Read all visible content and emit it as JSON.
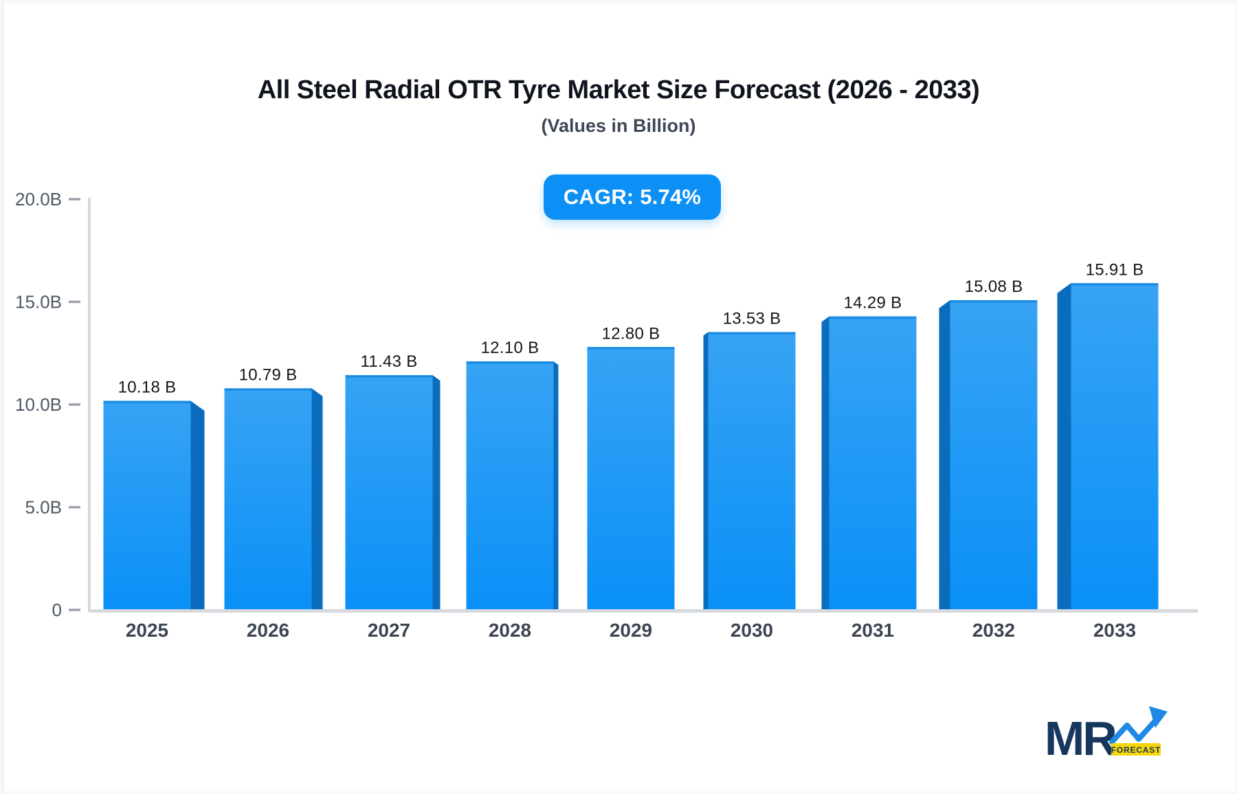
{
  "frame": {
    "background": "#f7f8fa"
  },
  "badge": {
    "label": "CAGR: 5.74%",
    "bg": "#0d90f5",
    "text_color": "#ffffff"
  },
  "chart_data": {
    "type": "bar",
    "title": "All Steel Radial OTR Tyre Market Size Forecast (2026 - 2033)",
    "subtitle": "(Values in Billion)",
    "unit": "Billion",
    "categories": [
      "2025",
      "2026",
      "2027",
      "2028",
      "2029",
      "2030",
      "2031",
      "2032",
      "2033"
    ],
    "values": [
      10.18,
      10.79,
      11.43,
      12.1,
      12.8,
      13.53,
      14.29,
      15.08,
      15.91
    ],
    "value_labels": [
      "10.18 B",
      "10.79 B",
      "11.43 B",
      "12.10 B",
      "12.80 B",
      "13.53 B",
      "14.29 B",
      "15.08 B",
      "15.91 B"
    ],
    "ylim": [
      0,
      20
    ],
    "yticks": [
      {
        "value": 0,
        "label": "0"
      },
      {
        "value": 5,
        "label": "5.0B"
      },
      {
        "value": 10,
        "label": "10.0B"
      },
      {
        "value": 15,
        "label": "15.0B"
      },
      {
        "value": 20,
        "label": "20.0B"
      }
    ],
    "grid": false,
    "legend": null,
    "style": {
      "front_top": "#37a3f4",
      "front_bottom": "#0a90f7",
      "side": "#0a6cbd",
      "bevel": "#1b8ce4",
      "axis": "#d6d9de",
      "tick": "#9ba3ad",
      "tick_label": "#4d5866",
      "x_label": "#3d4552",
      "value_label": "#12151a"
    }
  },
  "logo": {
    "text": "MR",
    "sub": "FORECAST",
    "navy": "#17375e",
    "blue": "#1f8ae5",
    "yellow": "#f6d60a"
  }
}
